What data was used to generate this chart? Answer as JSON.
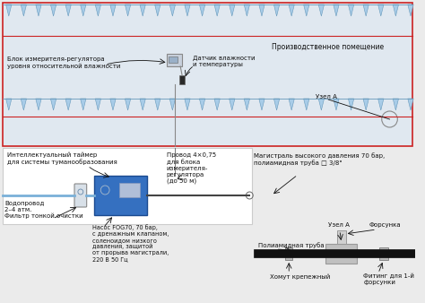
{
  "bg_color": "#ebebeb",
  "room_bg": "#e0e8f0",
  "bottom_bg": "#f5f5f5",
  "red_border": "#cc2222",
  "blue_pump": "#3570c0",
  "blue_pump_dark": "#1a4a90",
  "pipe_blue": "#7ab0d8",
  "pipe_black": "#111111",
  "gray_device": "#b0b8c8",
  "gray_connector": "#aaaaaa",
  "black": "#111111",
  "white": "#ffffff",
  "nozzle_fill": "#a8cce8",
  "nozzle_edge": "#6699bb",
  "room_label": "Производственное помещение",
  "label_humidity_block": "Блок измерителя-регулятора\nуровня относительной влажности",
  "label_sensor": "Датчик влажности\nи температуры",
  "label_node_a_top": "Узел А",
  "label_timer": "Интеллектуальный таймер\nдля системы туманообразования",
  "label_water": "Водопровод\n2–4 атм.",
  "label_filter": "Фильтр тонкой очистки",
  "label_pump": "Насос FOG70, 70 бар,\nс дренажным клапаном,\nсоленоидом низкого\nдавления, защитой\nот прорыва магистрали,\n220 В 50 Гц",
  "label_wire": "Провод 4×0,75\nдля блока\nизмерителя-\nрегулятора\n(до 50 м)",
  "label_main": "Магистраль высокого давления 70 бар,\nполиамидная труба □ 3/8\"",
  "label_node_a_bot": "Узел А",
  "label_pipe": "Полиамидная труба",
  "label_clamp": "Хомут крепежный",
  "label_nozzle": "Форсунка",
  "label_fitting": "Фитинг для 1-й\nфорсунки"
}
